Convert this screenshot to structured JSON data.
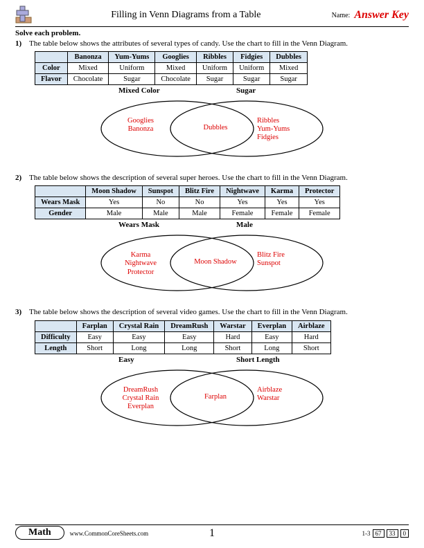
{
  "header": {
    "title": "Filling in Venn Diagrams from a Table",
    "name_label": "Name:",
    "answer_key": "Answer Key"
  },
  "instruction": "Solve each problem.",
  "problems": [
    {
      "num": "1)",
      "desc": "The table below shows the attributes of several types of candy. Use the chart to fill in the Venn Diagram.",
      "columns": [
        "Banonza",
        "Yum-Yums",
        "Googlies",
        "Ribbles",
        "Fidgies",
        "Dubbles"
      ],
      "rows": [
        {
          "hdr": "Color",
          "cells": [
            "Mixed",
            "Uniform",
            "Mixed",
            "Uniform",
            "Uniform",
            "Mixed"
          ]
        },
        {
          "hdr": "Flavor",
          "cells": [
            "Chocolate",
            "Sugar",
            "Chocolate",
            "Sugar",
            "Sugar",
            "Sugar"
          ]
        }
      ],
      "venn": {
        "left_label": "Mixed Color",
        "right_label": "Sugar",
        "left_items": "Googlies\nBanonza",
        "center_items": "Dubbles",
        "right_items": "Ribbles\nYum-Yums\nFidgies"
      }
    },
    {
      "num": "2)",
      "desc": "The table below shows the description of several super heroes. Use the chart to fill in the Venn Diagram.",
      "columns": [
        "Moon Shadow",
        "Sunspot",
        "Blitz Fire",
        "Nightwave",
        "Karma",
        "Protector"
      ],
      "rows": [
        {
          "hdr": "Wears Mask",
          "cells": [
            "Yes",
            "No",
            "No",
            "Yes",
            "Yes",
            "Yes"
          ]
        },
        {
          "hdr": "Gender",
          "cells": [
            "Male",
            "Male",
            "Male",
            "Female",
            "Female",
            "Female"
          ]
        }
      ],
      "venn": {
        "left_label": "Wears Mask",
        "right_label": "Male",
        "left_items": "Karma\nNightwave\nProtector",
        "center_items": "Moon Shadow",
        "right_items": "Blitz Fire\nSunspot"
      }
    },
    {
      "num": "3)",
      "desc": "The table below shows the description of several video games. Use the chart to fill in the Venn Diagram.",
      "columns": [
        "Farplan",
        "Crystal Rain",
        "DreamRush",
        "Warstar",
        "Everplan",
        "Airblaze"
      ],
      "rows": [
        {
          "hdr": "Difficulty",
          "cells": [
            "Easy",
            "Easy",
            "Easy",
            "Hard",
            "Easy",
            "Hard"
          ]
        },
        {
          "hdr": "Length",
          "cells": [
            "Short",
            "Long",
            "Long",
            "Short",
            "Long",
            "Short"
          ]
        }
      ],
      "venn": {
        "left_label": "Easy",
        "right_label": "Short Length",
        "left_items": "DreamRush\nCrystal Rain\nEverplan",
        "center_items": "Farplan",
        "right_items": "Airblaze\nWarstar"
      }
    }
  ],
  "footer": {
    "subject": "Math",
    "url": "www.CommonCoreSheets.com",
    "page": "1",
    "range": "1-3",
    "scores": [
      "67",
      "33",
      "0"
    ]
  }
}
